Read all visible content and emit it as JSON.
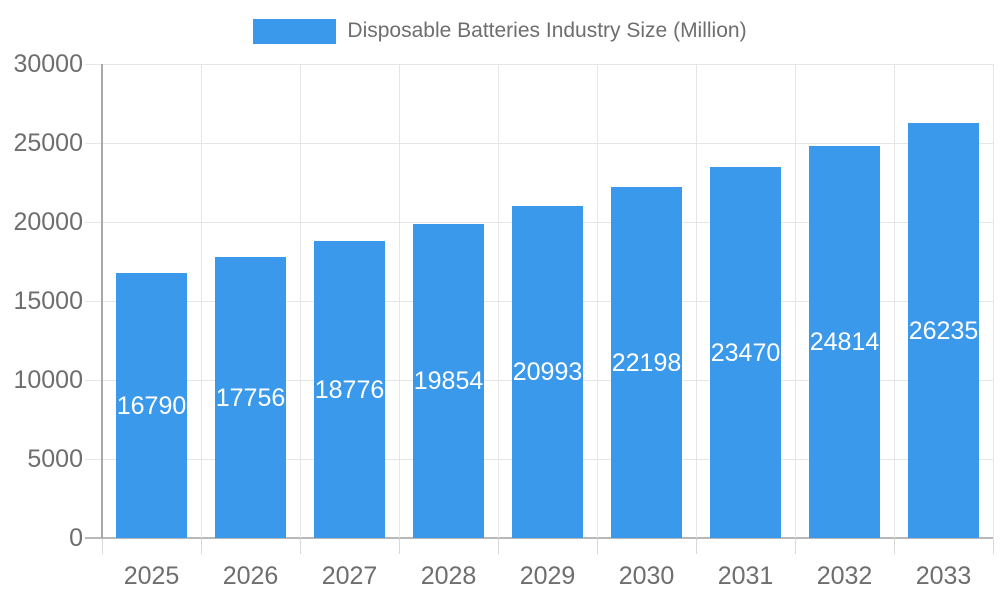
{
  "legend": {
    "label": "Disposable Batteries Industry Size (Million)"
  },
  "chart_data": {
    "type": "bar",
    "title": "Disposable Batteries Industry Size (Million)",
    "series_name": "Disposable Batteries Industry Size (Million)",
    "categories": [
      "2025",
      "2026",
      "2027",
      "2028",
      "2029",
      "2030",
      "2031",
      "2032",
      "2033"
    ],
    "values": [
      16790,
      17756,
      18776,
      19854,
      20993,
      22198,
      23470,
      24814,
      26235
    ],
    "xlabel": "",
    "ylabel": "",
    "ylim": [
      0,
      30000
    ],
    "ytick_step": 5000,
    "ytick_labels": [
      "0",
      "5000",
      "10000",
      "15000",
      "20000",
      "25000",
      "30000"
    ],
    "grid": true,
    "legend_position": "top",
    "bar_color": "#3B99EC",
    "value_label_color": "#FFFFFF",
    "value_label_position": "inside-center",
    "axis_text_color": "#6E6E6E",
    "gridline_color": "#E6E6E6",
    "axis_line_color": "#A8A8A8",
    "zero_line_color": "#B8B8B8",
    "tick_mark_color": "#D9D9D9"
  }
}
